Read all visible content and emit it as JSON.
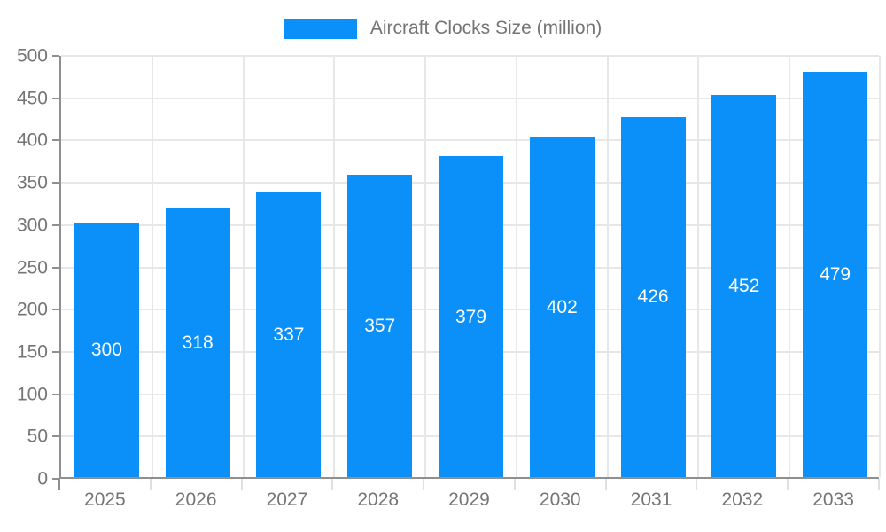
{
  "chart_data": {
    "type": "bar",
    "title": "",
    "legend": "Aircraft Clocks Size (million)",
    "legend_position": "top-center",
    "categories": [
      "2025",
      "2026",
      "2027",
      "2028",
      "2029",
      "2030",
      "2031",
      "2032",
      "2033"
    ],
    "values": [
      300,
      318,
      337,
      357,
      379,
      402,
      426,
      452,
      479
    ],
    "xlabel": "",
    "ylabel": "",
    "ylim": [
      0,
      500
    ],
    "ytick_step": 50,
    "yticks": [
      0,
      50,
      100,
      150,
      200,
      250,
      300,
      350,
      400,
      450,
      500
    ],
    "grid": true,
    "colors": {
      "bar": "#0a90f8",
      "value_label": "#ffffff",
      "axis": "#8f8f8f",
      "grid": "#e7e7e7",
      "tick_label": "#757575",
      "background": "#ffffff"
    }
  }
}
